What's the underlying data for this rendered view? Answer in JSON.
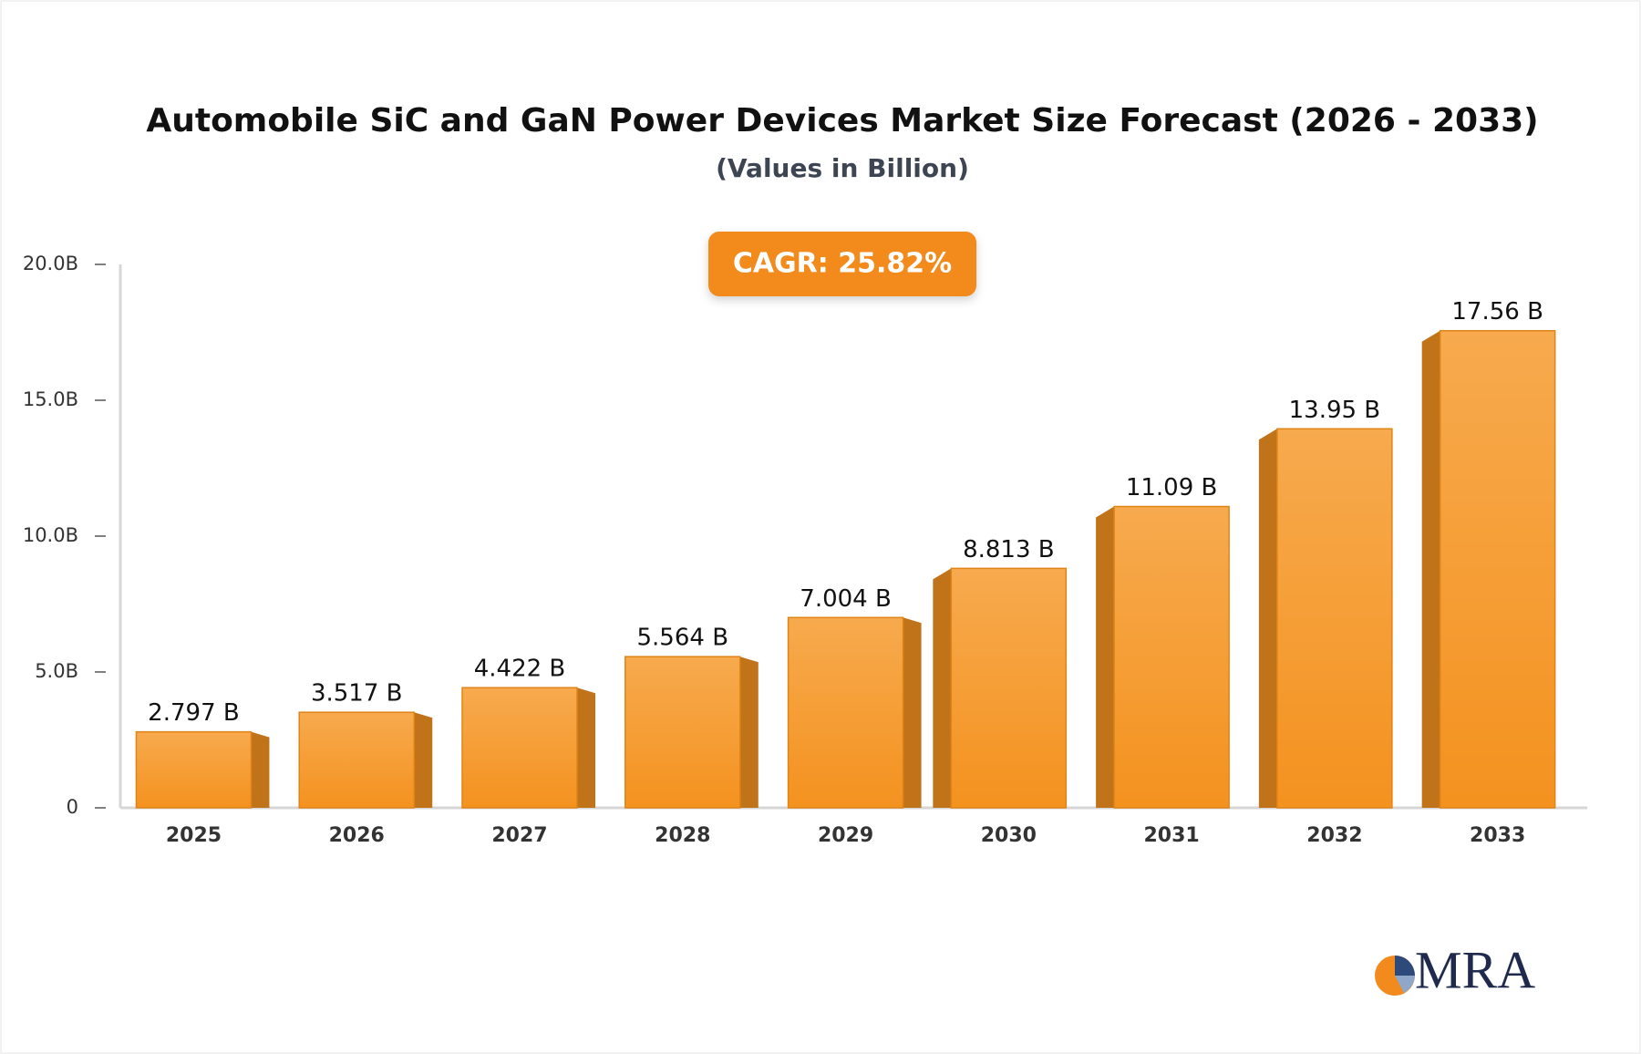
{
  "chart_data": {
    "type": "bar3d",
    "title": "Automobile SiC and GaN Power Devices Market Size Forecast (2026 - 2033)",
    "subtitle": "(Values in Billion)",
    "annotation": "CAGR: 25.82%",
    "logo_text": "MRA",
    "categories": [
      "2025",
      "2026",
      "2027",
      "2028",
      "2029",
      "2030",
      "2031",
      "2032",
      "2033"
    ],
    "values": [
      2.797,
      3.517,
      4.422,
      5.564,
      7.004,
      8.813,
      11.09,
      13.95,
      17.56
    ],
    "value_labels": [
      "2.797 B",
      "3.517 B",
      "4.422 B",
      "5.564 B",
      "7.004 B",
      "8.813 B",
      "11.09 B",
      "13.95 B",
      "17.56 B"
    ],
    "color": "#f7a23f",
    "side_color": "#c1731a",
    "ylim": [
      0,
      20
    ],
    "yticks": [
      0,
      {
        "value": 5,
        "label": "5.0B"
      },
      {
        "value": 10,
        "label": "10.0B"
      },
      {
        "value": 15,
        "label": "15.0B"
      },
      {
        "value": 20,
        "label": "20.0B"
      }
    ],
    "grid": false
  }
}
